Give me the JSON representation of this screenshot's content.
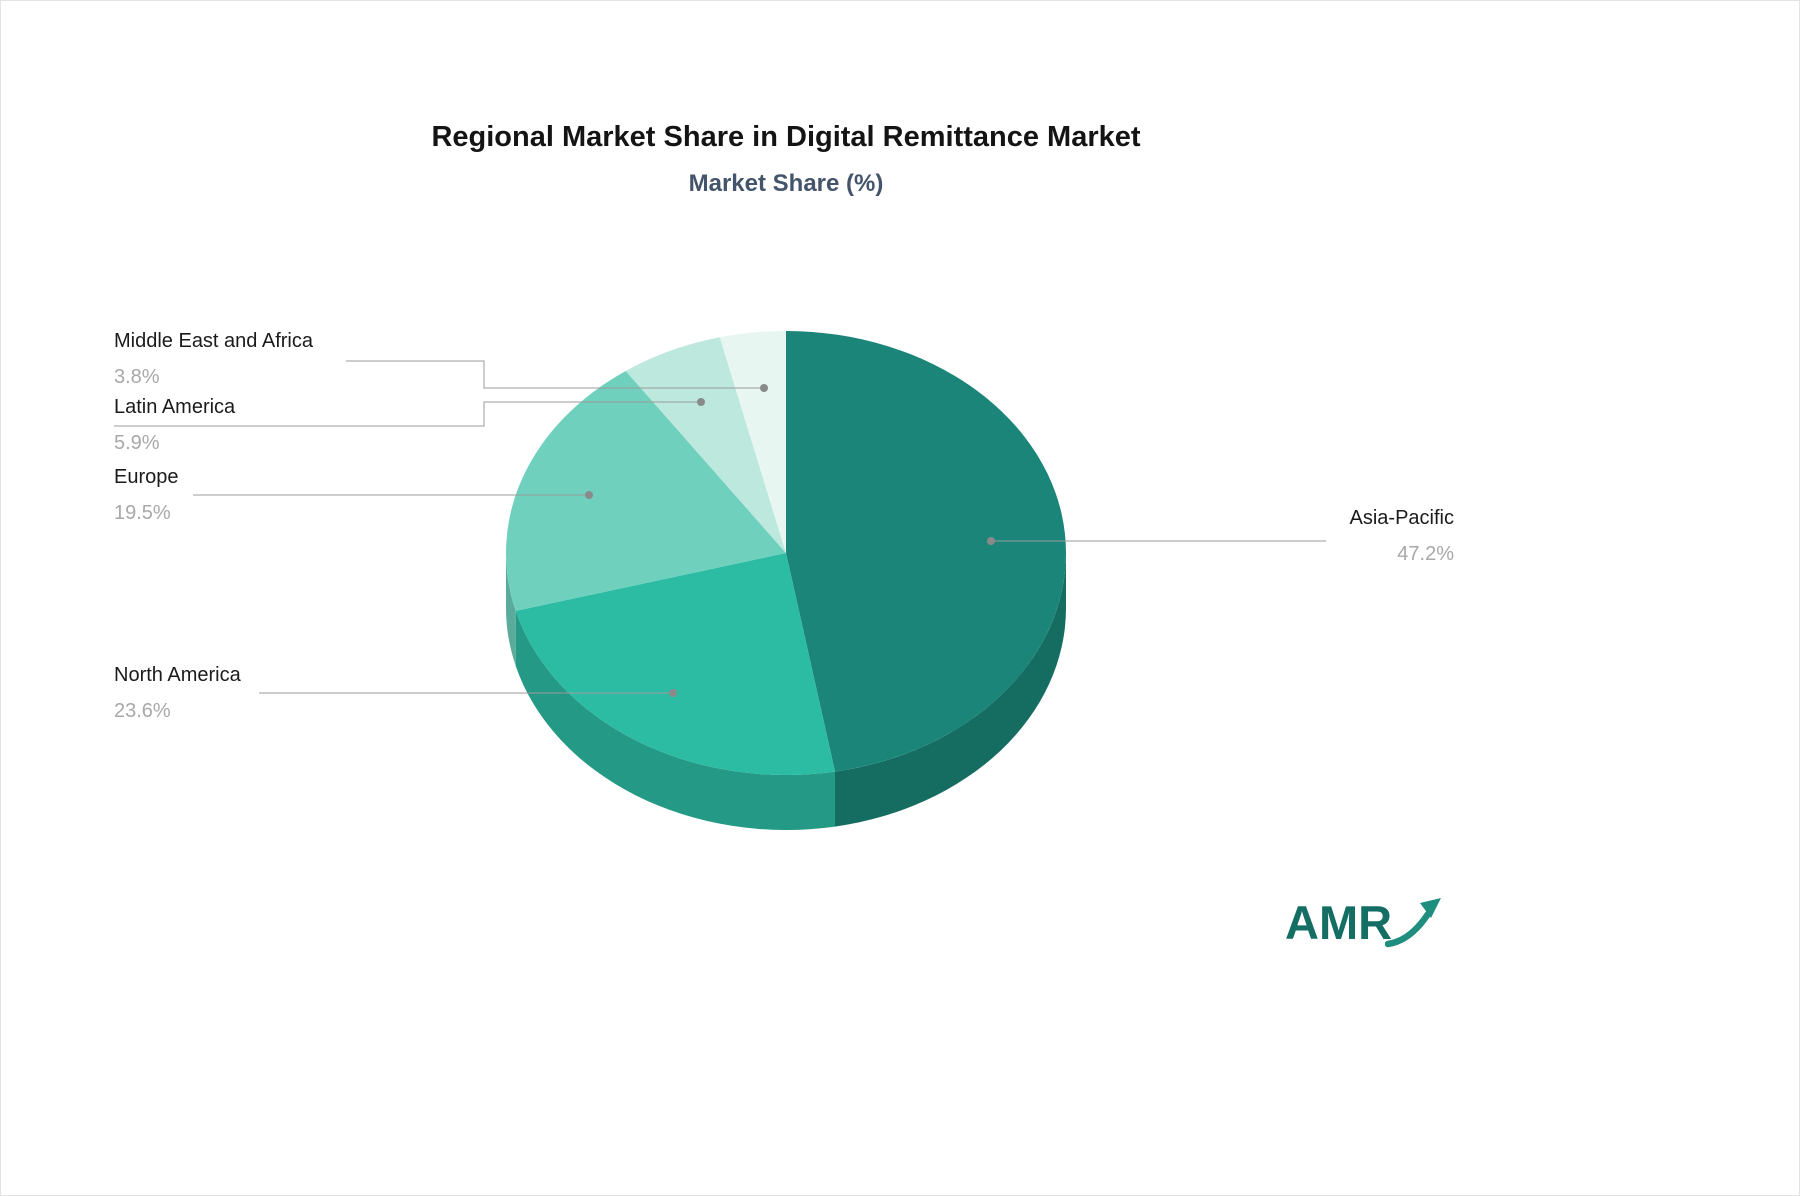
{
  "chart_data": {
    "type": "pie",
    "title": "Regional Market Share in Digital Remittance Market",
    "subtitle": "Market Share (%)",
    "categories": [
      "Asia-Pacific",
      "North America",
      "Europe",
      "Latin America",
      "Middle East and Africa"
    ],
    "values": [
      47.2,
      23.6,
      19.5,
      5.9,
      3.8
    ],
    "value_labels": [
      "47.2%",
      "23.6%",
      "19.5%",
      "5.9%",
      "3.8%"
    ],
    "colors": [
      "#1a8578",
      "#2cbca4",
      "#6fd1bd",
      "#bce8de",
      "#e8f6f2"
    ],
    "effect": "3d",
    "legend_position": "none",
    "start_angle_deg": 0,
    "direction": "clockwise"
  },
  "logo": {
    "text": "AMR",
    "color": "#156e64",
    "arrow_color": "#1f8e7e"
  }
}
